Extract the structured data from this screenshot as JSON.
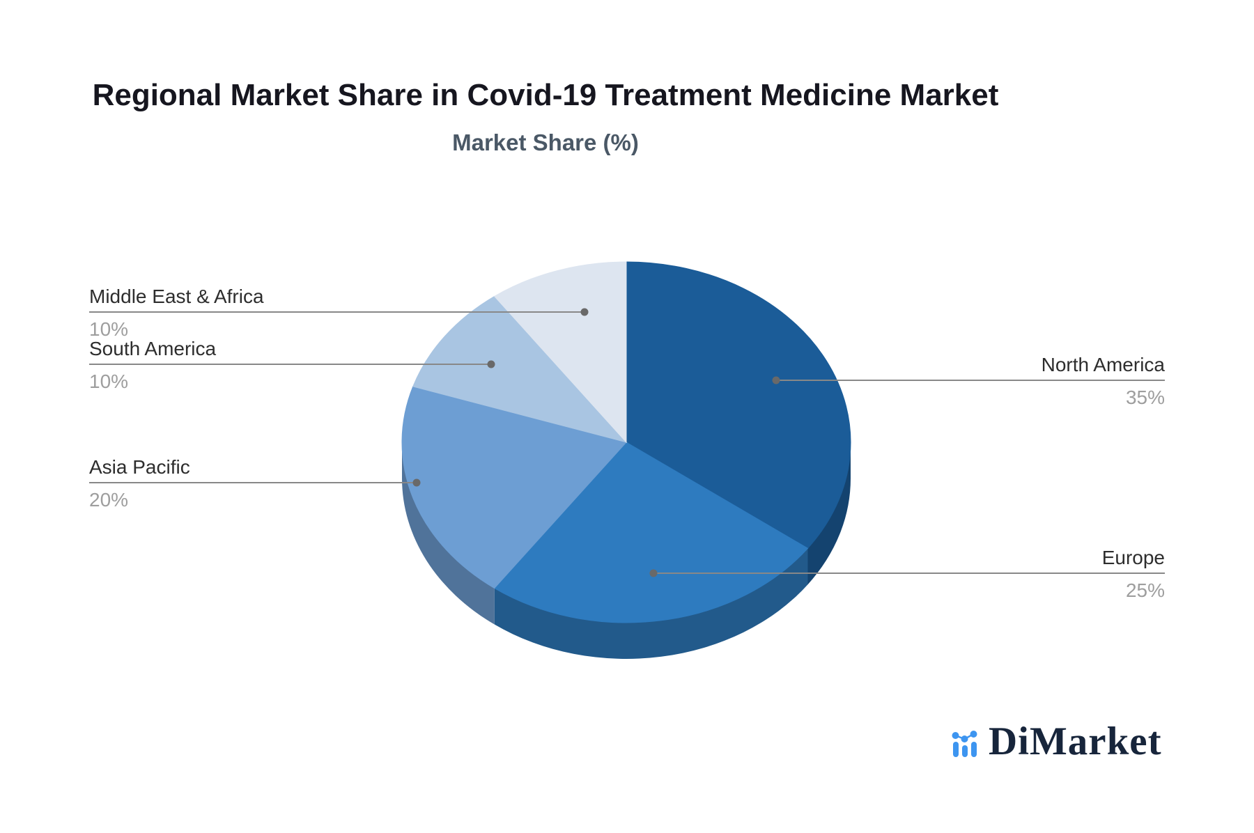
{
  "header": {
    "title": "Regional Market Share in Covid-19 Treatment Medicine Market",
    "subtitle": "Market Share (%)"
  },
  "logo": {
    "text": "DiMarket"
  },
  "chart_data": {
    "type": "pie",
    "style": "3d",
    "title": "Regional Market Share in Covid-19 Treatment Medicine Market",
    "subtitle": "Market Share (%)",
    "unit": "%",
    "direction": "clockwise",
    "start_angle_deg": 0,
    "legend_position": "callout-labels",
    "slices": [
      {
        "label": "North America",
        "value": 35,
        "pct_label": "35%",
        "color": "#1b5c98",
        "callout_side": "right"
      },
      {
        "label": "Europe",
        "value": 25,
        "pct_label": "25%",
        "color": "#2e7bbf",
        "callout_side": "right"
      },
      {
        "label": "Asia Pacific",
        "value": 20,
        "pct_label": "20%",
        "color": "#6d9ed3",
        "callout_side": "left"
      },
      {
        "label": "South America",
        "value": 10,
        "pct_label": "10%",
        "color": "#a9c5e2",
        "callout_side": "left"
      },
      {
        "label": "Middle East & Africa",
        "value": 10,
        "pct_label": "10%",
        "color": "#dde5f0",
        "callout_side": "left"
      }
    ],
    "colors": {
      "label_text": "#2d2d2d",
      "pct_text": "#9e9e9e",
      "leader_line": "#888888",
      "leader_dot": "#696969"
    }
  }
}
